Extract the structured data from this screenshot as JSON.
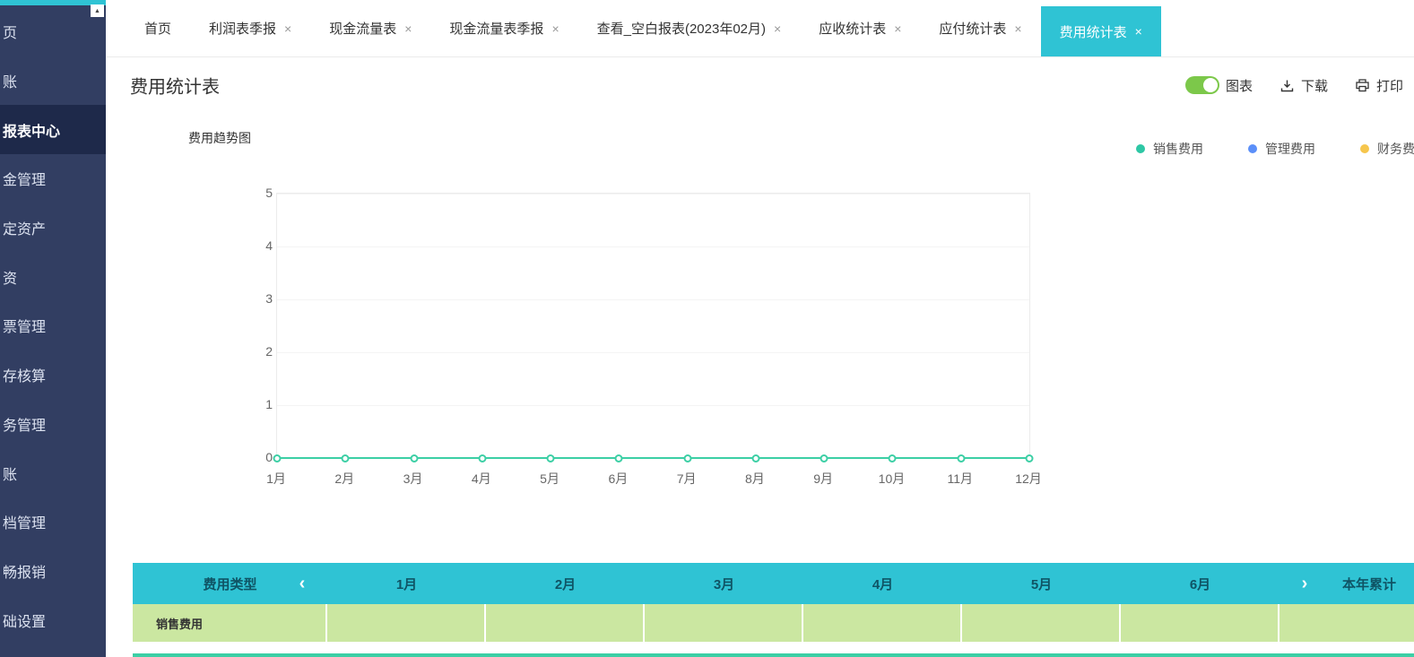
{
  "sidebar": {
    "scroll_up_glyph": "▲",
    "items": [
      {
        "label": "页",
        "active": false
      },
      {
        "label": "账",
        "active": false
      },
      {
        "label": "报表中心",
        "active": true
      },
      {
        "label": "金管理",
        "active": false
      },
      {
        "label": "定资产",
        "active": false
      },
      {
        "label": "资",
        "active": false
      },
      {
        "label": "票管理",
        "active": false
      },
      {
        "label": "存核算",
        "active": false
      },
      {
        "label": "务管理",
        "active": false
      },
      {
        "label": "账",
        "active": false
      },
      {
        "label": "档管理",
        "active": false
      },
      {
        "label": "畅报销",
        "active": false
      },
      {
        "label": "础设置",
        "active": false
      }
    ]
  },
  "tabs": {
    "close_glyph": "×",
    "items": [
      {
        "label": "首页",
        "closable": false,
        "active": false
      },
      {
        "label": "利润表季报",
        "closable": true,
        "active": false
      },
      {
        "label": "现金流量表",
        "closable": true,
        "active": false
      },
      {
        "label": "现金流量表季报",
        "closable": true,
        "active": false
      },
      {
        "label": "查看_空白报表(2023年02月)",
        "closable": true,
        "active": false
      },
      {
        "label": "应收统计表",
        "closable": true,
        "active": false
      },
      {
        "label": "应付统计表",
        "closable": true,
        "active": false
      },
      {
        "label": "费用统计表",
        "closable": true,
        "active": true
      }
    ]
  },
  "page": {
    "title": "费用统计表"
  },
  "toolbar": {
    "chart_toggle": {
      "label": "图表",
      "on": true
    },
    "download": {
      "label": "下载"
    },
    "print": {
      "label": "打印"
    }
  },
  "chart_data": {
    "type": "line",
    "title": "费用趋势图",
    "x": [
      "1月",
      "2月",
      "3月",
      "4月",
      "5月",
      "6月",
      "7月",
      "8月",
      "9月",
      "10月",
      "11月",
      "12月"
    ],
    "y_ticks": [
      5,
      4,
      3,
      2,
      1,
      0
    ],
    "ylim": [
      0,
      5
    ],
    "grid": true,
    "legend_position": "top-right",
    "legend": [
      {
        "label": "销售费用",
        "color": "#2ec7a5"
      },
      {
        "label": "管理费用",
        "color": "#5b8ff9"
      },
      {
        "label": "财务费用",
        "color": "#f6c64d"
      }
    ],
    "series": [
      {
        "name": "销售费用",
        "color": "#3ccfa5",
        "values": [
          0,
          0,
          0,
          0,
          0,
          0,
          0,
          0,
          0,
          0,
          0,
          0
        ]
      }
    ]
  },
  "table": {
    "prev_glyph": "‹",
    "next_glyph": "›",
    "columns": {
      "first": "费用类型",
      "months": [
        "1月",
        "2月",
        "3月",
        "4月",
        "5月",
        "6月"
      ],
      "last": "本年累计"
    },
    "rows": [
      {
        "label": "销售费用",
        "values": [
          "",
          "",
          "",
          "",
          "",
          "",
          ""
        ]
      }
    ]
  },
  "colors": {
    "accent": "#2fc3d4",
    "sidebar_bg": "#323e62",
    "sidebar_active_bg": "#1e294a",
    "row_green": "#cbe7a1",
    "series_line": "#3ccfa5",
    "toggle_green": "#7cc84a"
  }
}
